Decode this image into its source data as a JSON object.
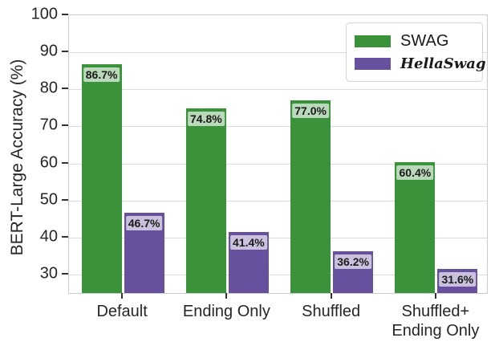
{
  "chart_data": {
    "type": "bar",
    "title": "",
    "ylabel": "BERT-Large Accuracy (%)",
    "xlabel": "",
    "ylim": [
      25,
      100
    ],
    "yticks": [
      "30",
      "40",
      "50",
      "60",
      "70",
      "80",
      "90",
      "100"
    ],
    "grid": true,
    "legend_position": "upper right",
    "categories": [
      "Default",
      "Ending Only",
      "Shuffled",
      "Shuffled+ Ending Only"
    ],
    "category_lines": [
      [
        "Default"
      ],
      [
        "Ending Only"
      ],
      [
        "Shuffled"
      ],
      [
        "Shuffled+",
        "Ending Only"
      ]
    ],
    "series": [
      {
        "name": "SWAG",
        "color": "#3a923a",
        "values": [
          86.7,
          74.8,
          77.0,
          60.4
        ],
        "labels": [
          "86.7%",
          "74.8%",
          "77.0%",
          "60.4%"
        ]
      },
      {
        "name": "HellaSwag",
        "color": "#67519e",
        "values": [
          46.7,
          41.4,
          36.2,
          31.6
        ],
        "labels": [
          "46.7%",
          "41.4%",
          "36.2%",
          "31.6%"
        ]
      }
    ],
    "colors": {
      "gridline": "#dcdcdc",
      "spine": "#cccccc",
      "tick": "#333333",
      "text": "#262626",
      "label_box_bg": "rgba(255,255,255,0.65)"
    }
  }
}
